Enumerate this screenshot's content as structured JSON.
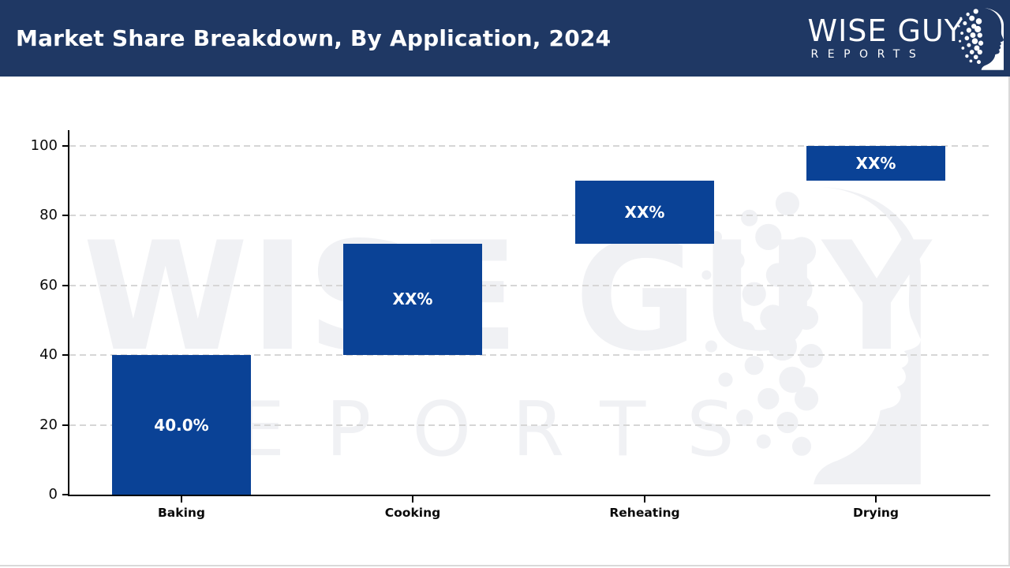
{
  "header": {
    "title": "Market Share Breakdown, By Application, 2024",
    "logo_line1": "WISE GUY",
    "logo_line2": "REPORTS"
  },
  "watermark": {
    "line1": "WISE GUY",
    "line2": "REPORTS"
  },
  "colors": {
    "header_bg": "#1F3864",
    "bar": "#0A4296",
    "bar_label": "#FFFFFF",
    "grid": "#D6D6D6",
    "watermark": "#F0F1F4"
  },
  "chart_data": {
    "type": "bar",
    "variant": "waterfall",
    "title": "Market Share Breakdown, By Application, 2024",
    "categories": [
      "Baking",
      "Cooking",
      "Reheating",
      "Drying"
    ],
    "segments": [
      {
        "category": "Baking",
        "start": 0,
        "end": 40,
        "value": 40,
        "label": "40.0%"
      },
      {
        "category": "Cooking",
        "start": 40,
        "end": 72,
        "value": 32,
        "label": "XX%"
      },
      {
        "category": "Reheating",
        "start": 72,
        "end": 90,
        "value": 18,
        "label": "XX%"
      },
      {
        "category": "Drying",
        "start": 90,
        "end": 100,
        "value": 10,
        "label": "XX%"
      }
    ],
    "xlabel": "",
    "ylabel": "",
    "ylim": [
      0,
      100
    ],
    "yticks": [
      0,
      20,
      40,
      60,
      80,
      100
    ],
    "grid": "horizontal-dashed",
    "legend": "none"
  }
}
